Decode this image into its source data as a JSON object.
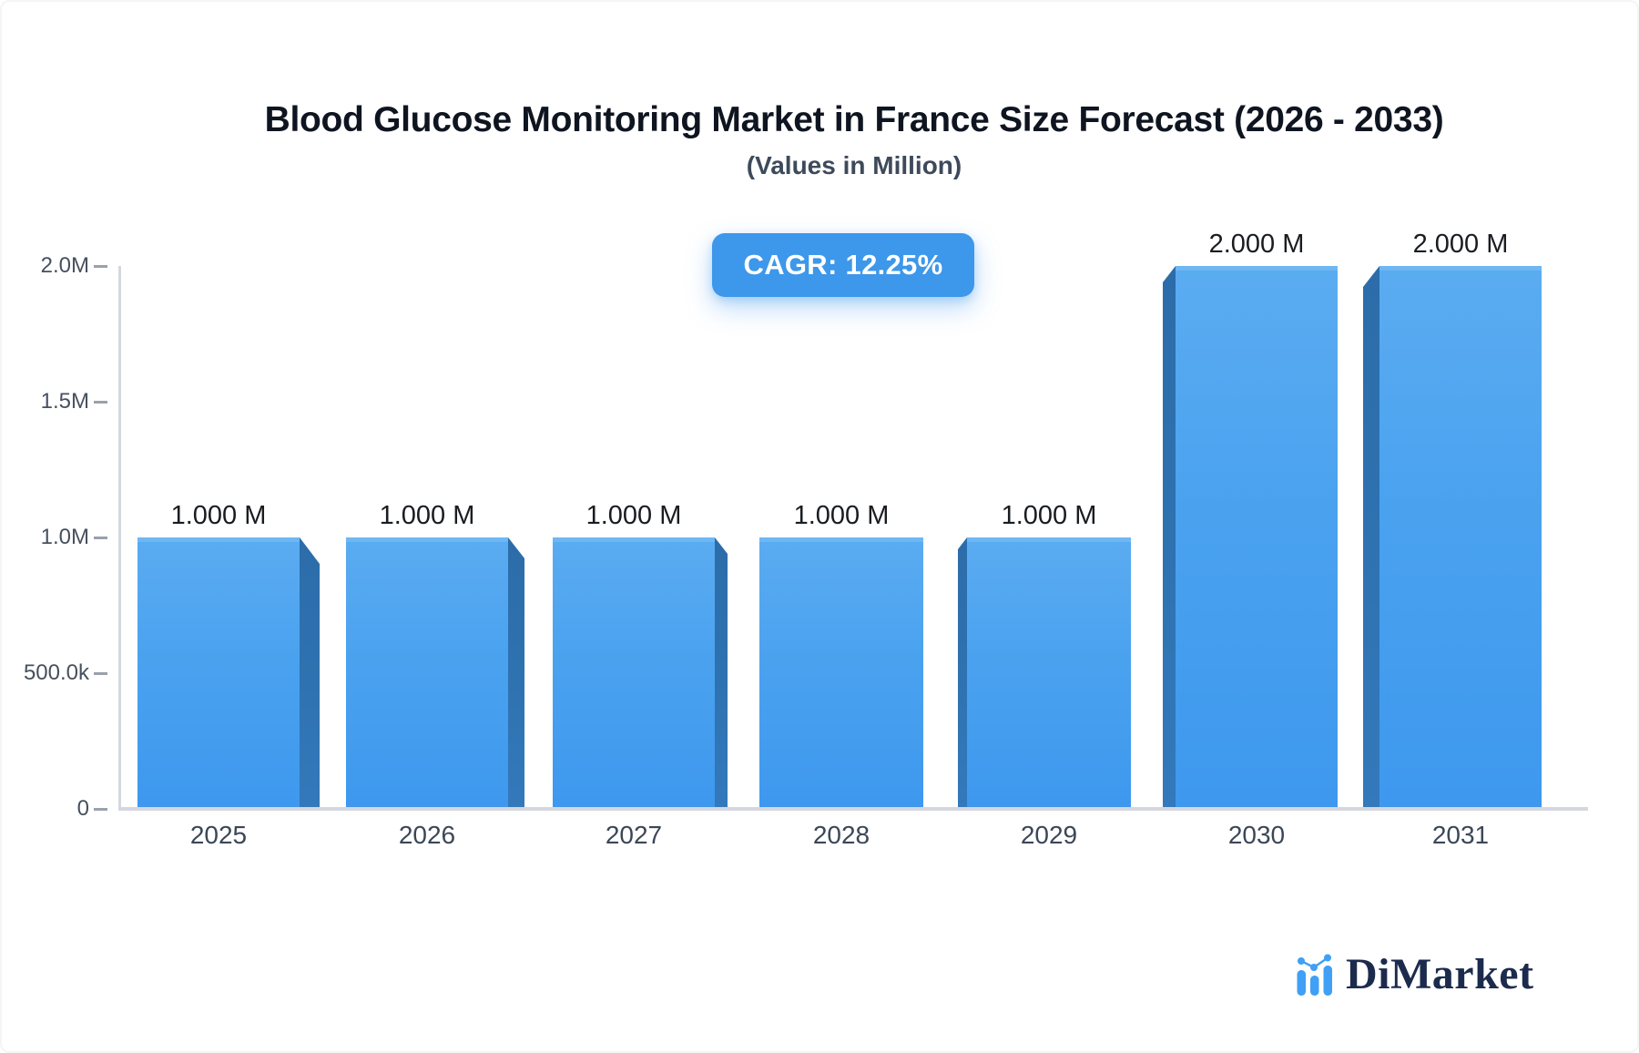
{
  "header": {
    "title": "Blood Glucose Monitoring Market in France Size Forecast (2026 - 2033)",
    "subtitle": "(Values in Million)"
  },
  "cagr": {
    "label": "CAGR: 12.25%"
  },
  "brand": {
    "name": "DiMarket",
    "icon": "mini-bar-chart-icon"
  },
  "colors": {
    "accent_blue": "#3d97ea",
    "bar_face_top": "#5bacf1",
    "bar_face_bottom": "#3e98ee",
    "bar_side": "#2f73b2",
    "axis_line": "#d4d8de",
    "tick_text": "#47505f",
    "brand_navy": "#1c2b4d"
  },
  "chart_data": {
    "type": "bar",
    "title": "Blood Glucose Monitoring Market in France Size Forecast (2026 - 2033)",
    "subtitle": "(Values in Million)",
    "unit": "Million",
    "cagr_percent": 12.25,
    "categories": [
      "2025",
      "2026",
      "2027",
      "2028",
      "2029",
      "2030",
      "2031"
    ],
    "values": [
      1000000,
      1000000,
      1000000,
      1000000,
      1000000,
      2000000,
      2000000
    ],
    "value_labels": [
      "1.000 M",
      "1.000 M",
      "1.000 M",
      "1.000 M",
      "1.000 M",
      "2.000 M",
      "2.000 M"
    ],
    "ylim": [
      0,
      2000000
    ],
    "yticks": [
      {
        "value": 0,
        "label": "0"
      },
      {
        "value": 500000,
        "label": "500.0k"
      },
      {
        "value": 1000000,
        "label": "1.0M"
      },
      {
        "value": 1500000,
        "label": "1.5M"
      },
      {
        "value": 2000000,
        "label": "2.0M"
      }
    ],
    "xlabel": "",
    "ylabel": "",
    "grid": false,
    "legend": false,
    "style": "3d-perspective-bars"
  }
}
